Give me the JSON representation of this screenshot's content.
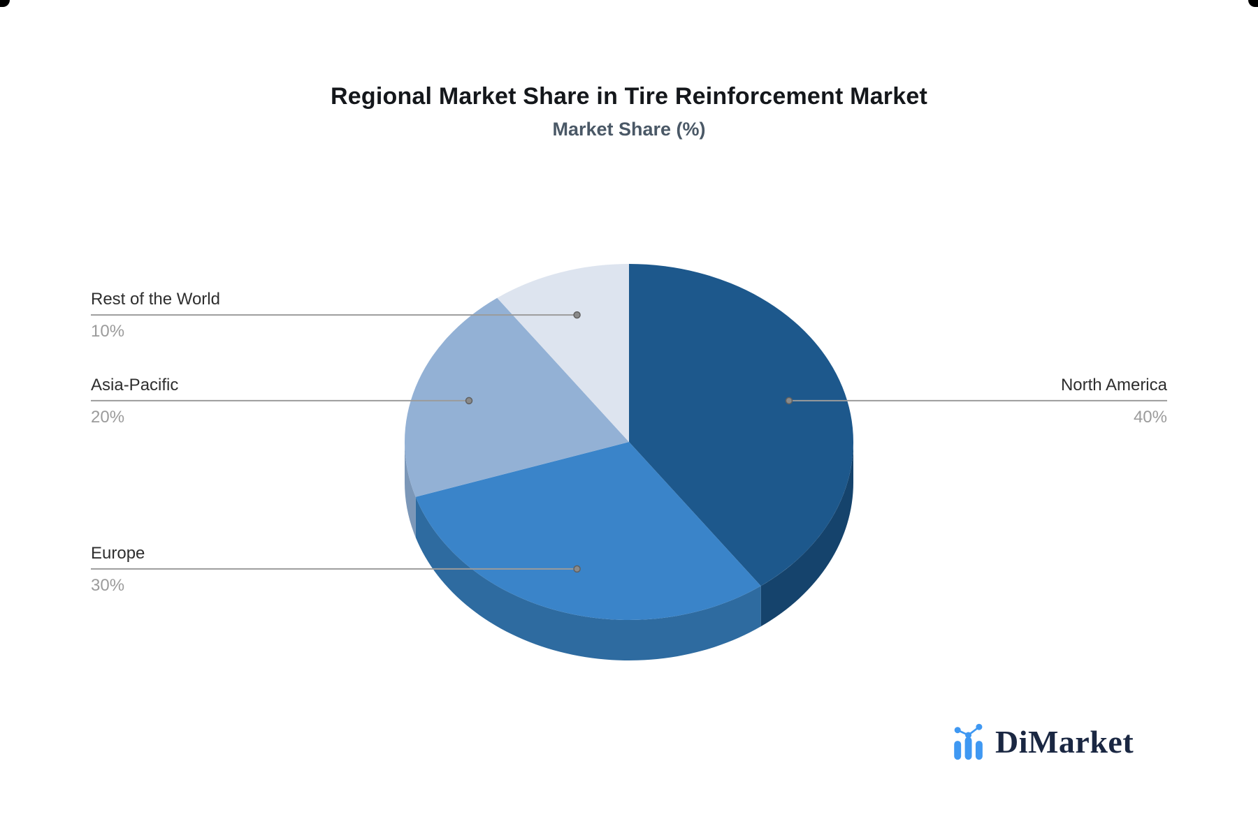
{
  "page": {
    "background": "#ffffff"
  },
  "header": {
    "title": "Regional Market Share in Tire Reinforcement Market",
    "subtitle": "Market Share (%)"
  },
  "chart_data": {
    "type": "pie",
    "style": "3d",
    "title": "Regional Market Share in Tire Reinforcement Market",
    "subtitle": "Market Share (%)",
    "categories": [
      "North America",
      "Europe",
      "Asia-Pacific",
      "Rest of the World"
    ],
    "values": [
      40,
      30,
      20,
      10
    ],
    "value_labels": [
      "40%",
      "30%",
      "20%",
      "10%"
    ],
    "unit": "%",
    "start_angle_deg": 0,
    "direction": "clockwise",
    "legend": "none",
    "slice_colors": [
      "#1d588c",
      "#3a84c9",
      "#93b1d5",
      "#dde4ef"
    ],
    "slice_side_colors": [
      "#15436c",
      "#2e6ba0",
      "#7b97b8",
      "#b9c6d8"
    ],
    "callout_line_color": "#9b9b9b",
    "callout_dot_fill": "#8a8a8a",
    "callout_dot_stroke": "#606060",
    "label_text_color": "#2e2e2e",
    "value_text_color": "#9b9b9b"
  },
  "logo": {
    "text": "DiMarket",
    "icon": "bar-chart-dots-icon",
    "icon_color": "#3f98f2",
    "text_color": "#1a2742"
  }
}
